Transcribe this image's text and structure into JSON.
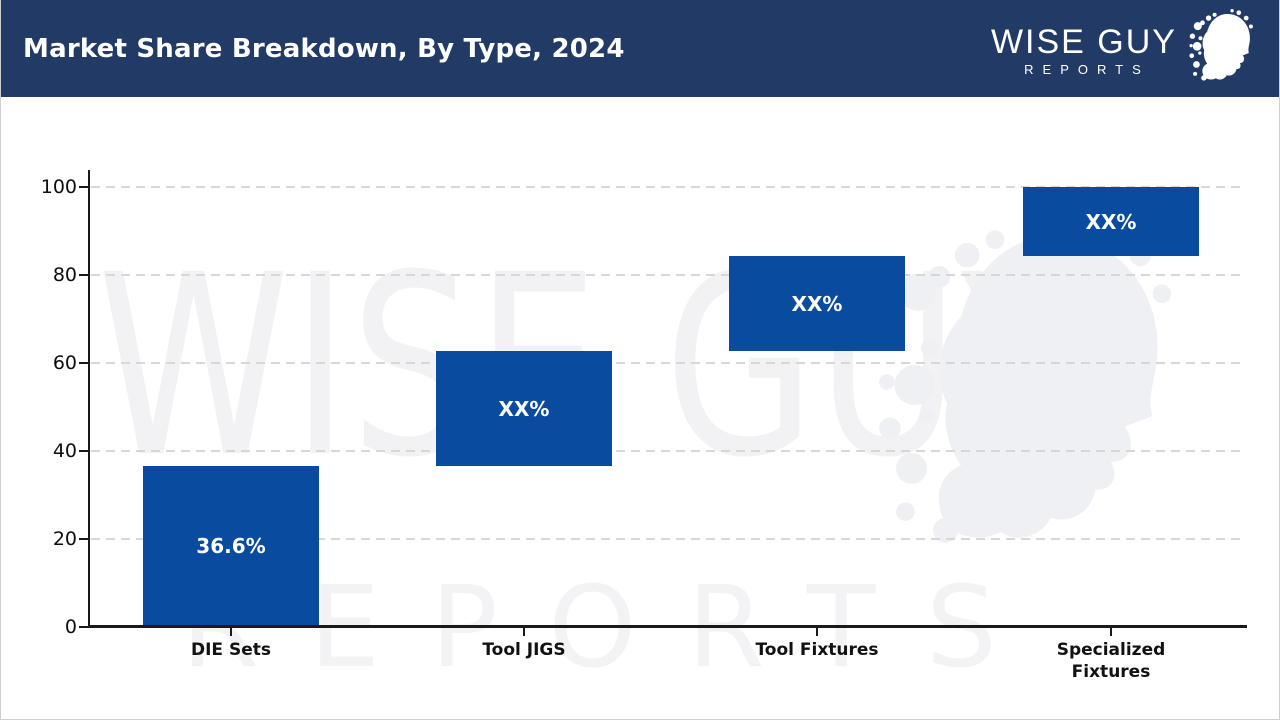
{
  "header": {
    "title": "Market Share Breakdown, By Type, 2024",
    "bg_color": "#213a66",
    "text_color": "#ffffff"
  },
  "logo": {
    "line1": "WISE GUY",
    "line2": "REPORTS",
    "icon": "dotted-face-profile"
  },
  "watermark": {
    "line1": "WISE GUY",
    "line2": "REPORTS",
    "icon": "dotted-face-profile",
    "color": "#f2f2f4"
  },
  "chart_data": {
    "type": "bar",
    "variant": "floating-segment waterfall (cumulative market share)",
    "title": "Market Share Breakdown, By Type, 2024",
    "categories": [
      "DIE Sets",
      "Tool JIGS",
      "Tool Fixtures",
      "Specialized Fixtures"
    ],
    "segments": [
      {
        "category": "DIE Sets",
        "start": 0,
        "end": 36.6,
        "size": 36.6,
        "label": "36.6%"
      },
      {
        "category": "Tool JIGS",
        "start": 36.6,
        "end": 62.7,
        "size": 26.1,
        "label": "XX%"
      },
      {
        "category": "Tool Fixtures",
        "start": 62.7,
        "end": 84.3,
        "size": 21.6,
        "label": "XX%"
      },
      {
        "category": "Specialized Fixtures",
        "start": 84.3,
        "end": 100,
        "size": 15.7,
        "label": "XX%"
      }
    ],
    "xlabel": "",
    "ylabel": "",
    "ylim": [
      0,
      100
    ],
    "yticks": [
      0,
      20,
      40,
      60,
      80,
      100
    ],
    "grid": "horizontal dashed",
    "legend": "none",
    "bar_color": "#084b9f",
    "bar_label_color": "#ffffff",
    "axis_color": "#1a1a1a",
    "grid_color": "#d7d7d7",
    "tick_label_color": "#0d0d0d"
  }
}
